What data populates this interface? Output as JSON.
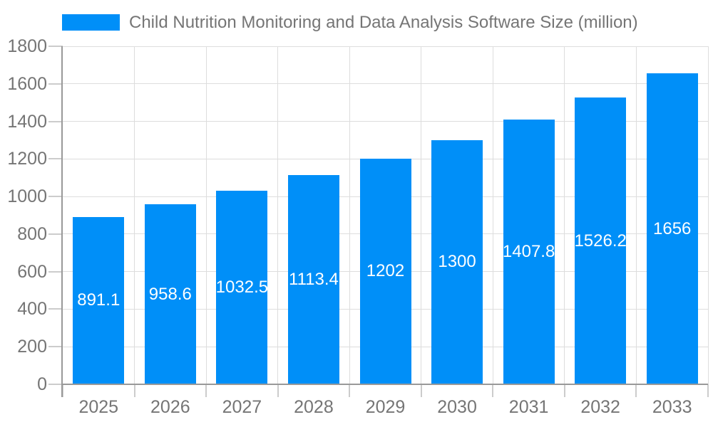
{
  "legend": {
    "label": "Child Nutrition Monitoring and Data Analysis Software Size (million)"
  },
  "chart_data": {
    "type": "bar",
    "title": "Child Nutrition Monitoring and Data Analysis Software Size (million)",
    "series_name": "Child Nutrition Monitoring and Data Analysis Software Size (million)",
    "categories": [
      "2025",
      "2026",
      "2027",
      "2028",
      "2029",
      "2030",
      "2031",
      "2032",
      "2033"
    ],
    "values": [
      891.1,
      958.6,
      1032.5,
      1113.4,
      1202,
      1300,
      1407.8,
      1526.2,
      1656
    ],
    "value_labels": [
      "891.1",
      "958.6",
      "1032.5",
      "1113.4",
      "1202",
      "1300",
      "1407.8",
      "1526.2",
      "1656"
    ],
    "xlabel": "",
    "ylabel": "",
    "ylim": [
      0,
      1800
    ],
    "yticks": [
      0,
      200,
      400,
      600,
      800,
      1000,
      1200,
      1400,
      1600,
      1800
    ],
    "grid": true,
    "legend_position": "top-left",
    "value_label_position": "inside-center",
    "colors": {
      "bar": "#008FF8",
      "grid": "#DDDDDD",
      "axis": "#999999",
      "tick": "#CCCCCC",
      "text": "#757575",
      "value_label": "#FFFFFF",
      "background": "#FFFFFF"
    }
  }
}
